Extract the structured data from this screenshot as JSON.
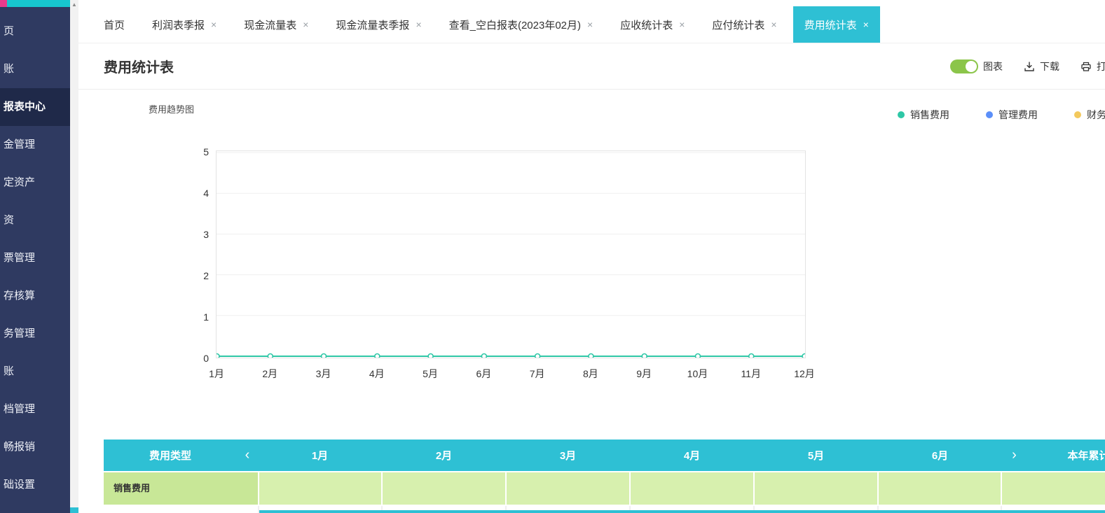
{
  "colors": {
    "accent_teal": "#2ec0d4",
    "toggle_green": "#8bc54a",
    "sidebar_bg": "#2f3a61",
    "sidebar_active_bg": "#1f2949",
    "brand_magenta": "#ea3a8c",
    "brand_teal": "#17c6cf",
    "row_green_dark": "#c8e797",
    "row_green_light": "#d7f0ae"
  },
  "icons": {
    "close": "×",
    "scroll_up": "▲",
    "prev": "‹",
    "next": "›"
  },
  "sidebar": {
    "items": [
      {
        "label": "页",
        "active": false
      },
      {
        "label": "账",
        "active": false
      },
      {
        "label": "报表中心",
        "active": true
      },
      {
        "label": "金管理",
        "active": false
      },
      {
        "label": "定资产",
        "active": false
      },
      {
        "label": "资",
        "active": false
      },
      {
        "label": "票管理",
        "active": false
      },
      {
        "label": "存核算",
        "active": false
      },
      {
        "label": "务管理",
        "active": false
      },
      {
        "label": "账",
        "active": false
      },
      {
        "label": "档管理",
        "active": false
      },
      {
        "label": "畅报销",
        "active": false
      },
      {
        "label": "础设置",
        "active": false
      }
    ]
  },
  "tabs": [
    {
      "label": "首页",
      "closable": false,
      "active": false
    },
    {
      "label": "利润表季报",
      "closable": true,
      "active": false
    },
    {
      "label": "现金流量表",
      "closable": true,
      "active": false
    },
    {
      "label": "现金流量表季报",
      "closable": true,
      "active": false
    },
    {
      "label": "查看_空白报表(2023年02月)",
      "closable": true,
      "active": false
    },
    {
      "label": "应收统计表",
      "closable": true,
      "active": false
    },
    {
      "label": "应付统计表",
      "closable": true,
      "active": false
    },
    {
      "label": "费用统计表",
      "closable": true,
      "active": true
    }
  ],
  "header": {
    "title": "费用统计表",
    "toggle_label": "图表",
    "toggle_on": true,
    "download_label": "下载",
    "print_label": "打印"
  },
  "chart_data": {
    "type": "line",
    "title": "费用趋势图",
    "x": [
      "1月",
      "2月",
      "3月",
      "4月",
      "5月",
      "6月",
      "7月",
      "8月",
      "9月",
      "10月",
      "11月",
      "12月"
    ],
    "yticks": [
      0,
      1,
      2,
      3,
      4,
      5
    ],
    "ylim": [
      0,
      5
    ],
    "grid": true,
    "legend_position": "top-right",
    "series": [
      {
        "name": "销售费用",
        "color": "#2ec7a6",
        "values": [
          0,
          0,
          0,
          0,
          0,
          0,
          0,
          0,
          0,
          0,
          0,
          0
        ]
      },
      {
        "name": "管理费用",
        "color": "#5b8ff9",
        "values": [
          0,
          0,
          0,
          0,
          0,
          0,
          0,
          0,
          0,
          0,
          0,
          0
        ]
      },
      {
        "name": "财务费用",
        "color": "#f3c95d",
        "values": [
          0,
          0,
          0,
          0,
          0,
          0,
          0,
          0,
          0,
          0,
          0,
          0
        ]
      }
    ]
  },
  "table": {
    "first_column": "费用类型",
    "visible_months": [
      "1月",
      "2月",
      "3月",
      "4月",
      "5月",
      "6月"
    ],
    "last_column": "本年累计",
    "rows": [
      {
        "label": "销售费用",
        "cells": [
          "",
          "",
          "",
          "",
          "",
          "",
          ""
        ]
      }
    ]
  }
}
